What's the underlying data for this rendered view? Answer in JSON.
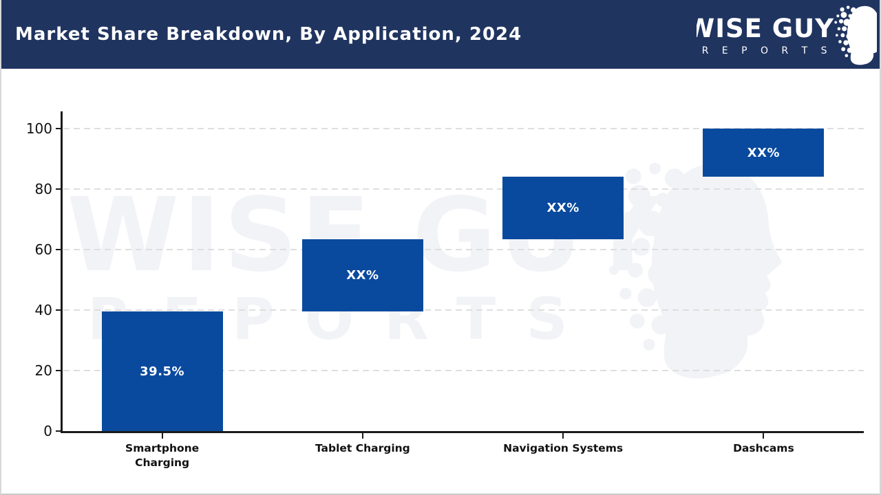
{
  "header": {
    "title": "Market Share Breakdown, By Application, 2024"
  },
  "logo": {
    "line1": "WISE GUY",
    "line2": "R E P O R T S",
    "head_icon": "dotted-head-profile"
  },
  "watermark": {
    "line1": "WISE GUY",
    "line2": "REPORTS"
  },
  "colors": {
    "header_bg": "#203460",
    "bar": "#0a4a9e",
    "grid": "#dedede",
    "axis": "#1a1a1a",
    "watermark": "#f2f3f6",
    "bar_label": "#ffffff",
    "title_text": "#ffffff"
  },
  "chart_data": {
    "type": "bar",
    "subtype": "waterfall",
    "title": "Market Share Breakdown, By Application, 2024",
    "categories": [
      "Smartphone Charging",
      "Tablet Charging",
      "Navigation Systems",
      "Dashcams"
    ],
    "x_tick_lines": [
      [
        "Smartphone",
        "Charging"
      ],
      [
        "Tablet Charging"
      ],
      [
        "Navigation Systems"
      ],
      [
        "Dashcams"
      ]
    ],
    "series": [
      {
        "name": "Market Share",
        "segments": [
          {
            "category": "Smartphone Charging",
            "start": 0,
            "end": 39.5,
            "label": "39.5%"
          },
          {
            "category": "Tablet Charging",
            "start": 39.5,
            "end": 63.5,
            "label": "XX%"
          },
          {
            "category": "Navigation Systems",
            "start": 63.5,
            "end": 84,
            "label": "XX%"
          },
          {
            "category": "Dashcams",
            "start": 84,
            "end": 100,
            "label": "XX%"
          }
        ]
      }
    ],
    "ylabel": "",
    "xlabel": "",
    "ylim": [
      0,
      100
    ],
    "yticks": [
      0,
      20,
      40,
      60,
      80,
      100
    ],
    "grid": "horizontal-dashed",
    "legend": "none"
  }
}
